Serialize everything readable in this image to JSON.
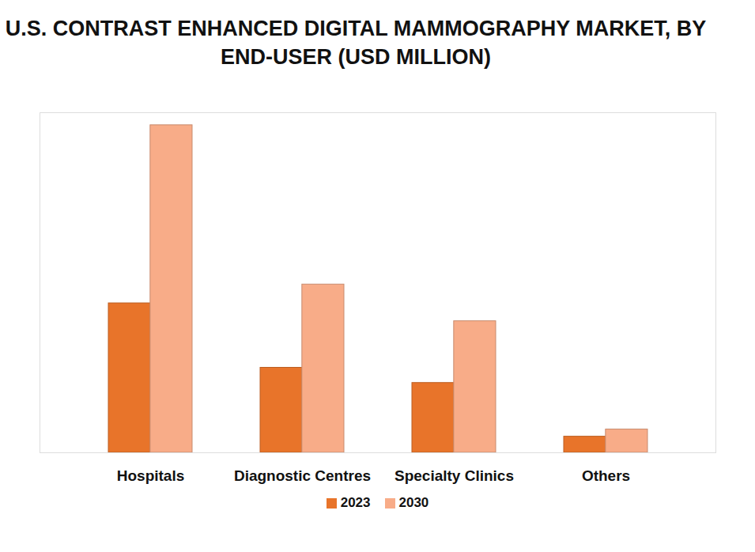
{
  "chart_data": {
    "type": "bar",
    "title": "U.S. CONTRAST ENHANCED DIGITAL MAMMOGRAPHY MARKET, BY END-USER (USD MILLION)",
    "categories": [
      "Hospitals",
      "Diagnostic Centres",
      "Specialty Clinics",
      "Others"
    ],
    "series": [
      {
        "name": "2023",
        "color": "#e8742a",
        "values": [
          167,
          95,
          78,
          18
        ]
      },
      {
        "name": "2030",
        "color": "#f8ac88",
        "values": [
          366,
          188,
          147,
          26
        ]
      }
    ],
    "ylim": [
      0,
      380
    ],
    "yticks": [],
    "tick_labels": "x",
    "grid": false,
    "legend": "bottom"
  }
}
